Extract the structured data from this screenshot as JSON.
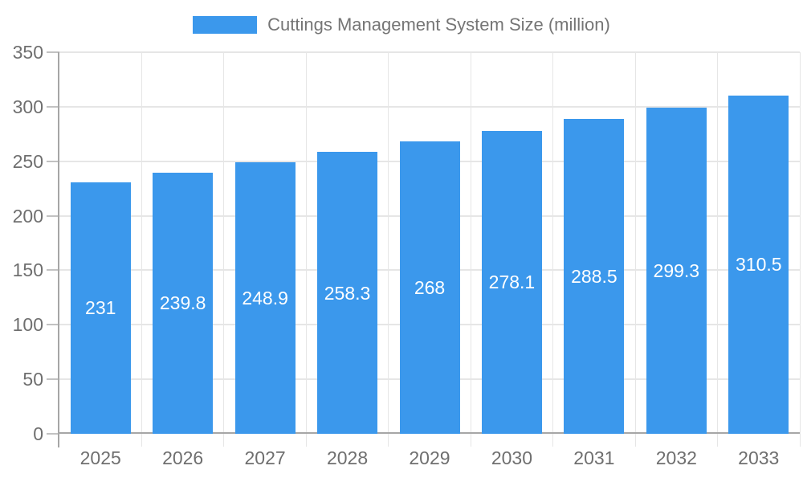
{
  "chart_data": {
    "type": "bar",
    "title": "Cuttings Management System Size (million)",
    "categories": [
      "2025",
      "2026",
      "2027",
      "2028",
      "2029",
      "2030",
      "2031",
      "2032",
      "2033"
    ],
    "values": [
      231,
      239.8,
      248.9,
      258.3,
      268,
      278.1,
      288.5,
      299.3,
      310.5
    ],
    "value_labels": [
      "231",
      "239.8",
      "248.9",
      "258.3",
      "268",
      "278.1",
      "288.5",
      "299.3",
      "310.5"
    ],
    "xlabel": "",
    "ylabel": "",
    "ylim": [
      0,
      350
    ],
    "y_ticks": [
      0,
      50,
      100,
      150,
      200,
      250,
      300,
      350
    ],
    "grid": true,
    "legend_position": "top",
    "bar_color": "#3b98ec"
  },
  "legend": {
    "items": [
      {
        "label": "Cuttings Management System Size (million)",
        "color": "#3b98ec"
      }
    ]
  },
  "colors": {
    "bar": "#3b98ec",
    "grid": "#e6e6e6",
    "axis": "#a6a6a6",
    "tick": "#c2c2c2",
    "axis_label": "#6f6f6f",
    "title": "#757575",
    "value_label": "#ffffff",
    "background": "#ffffff"
  }
}
